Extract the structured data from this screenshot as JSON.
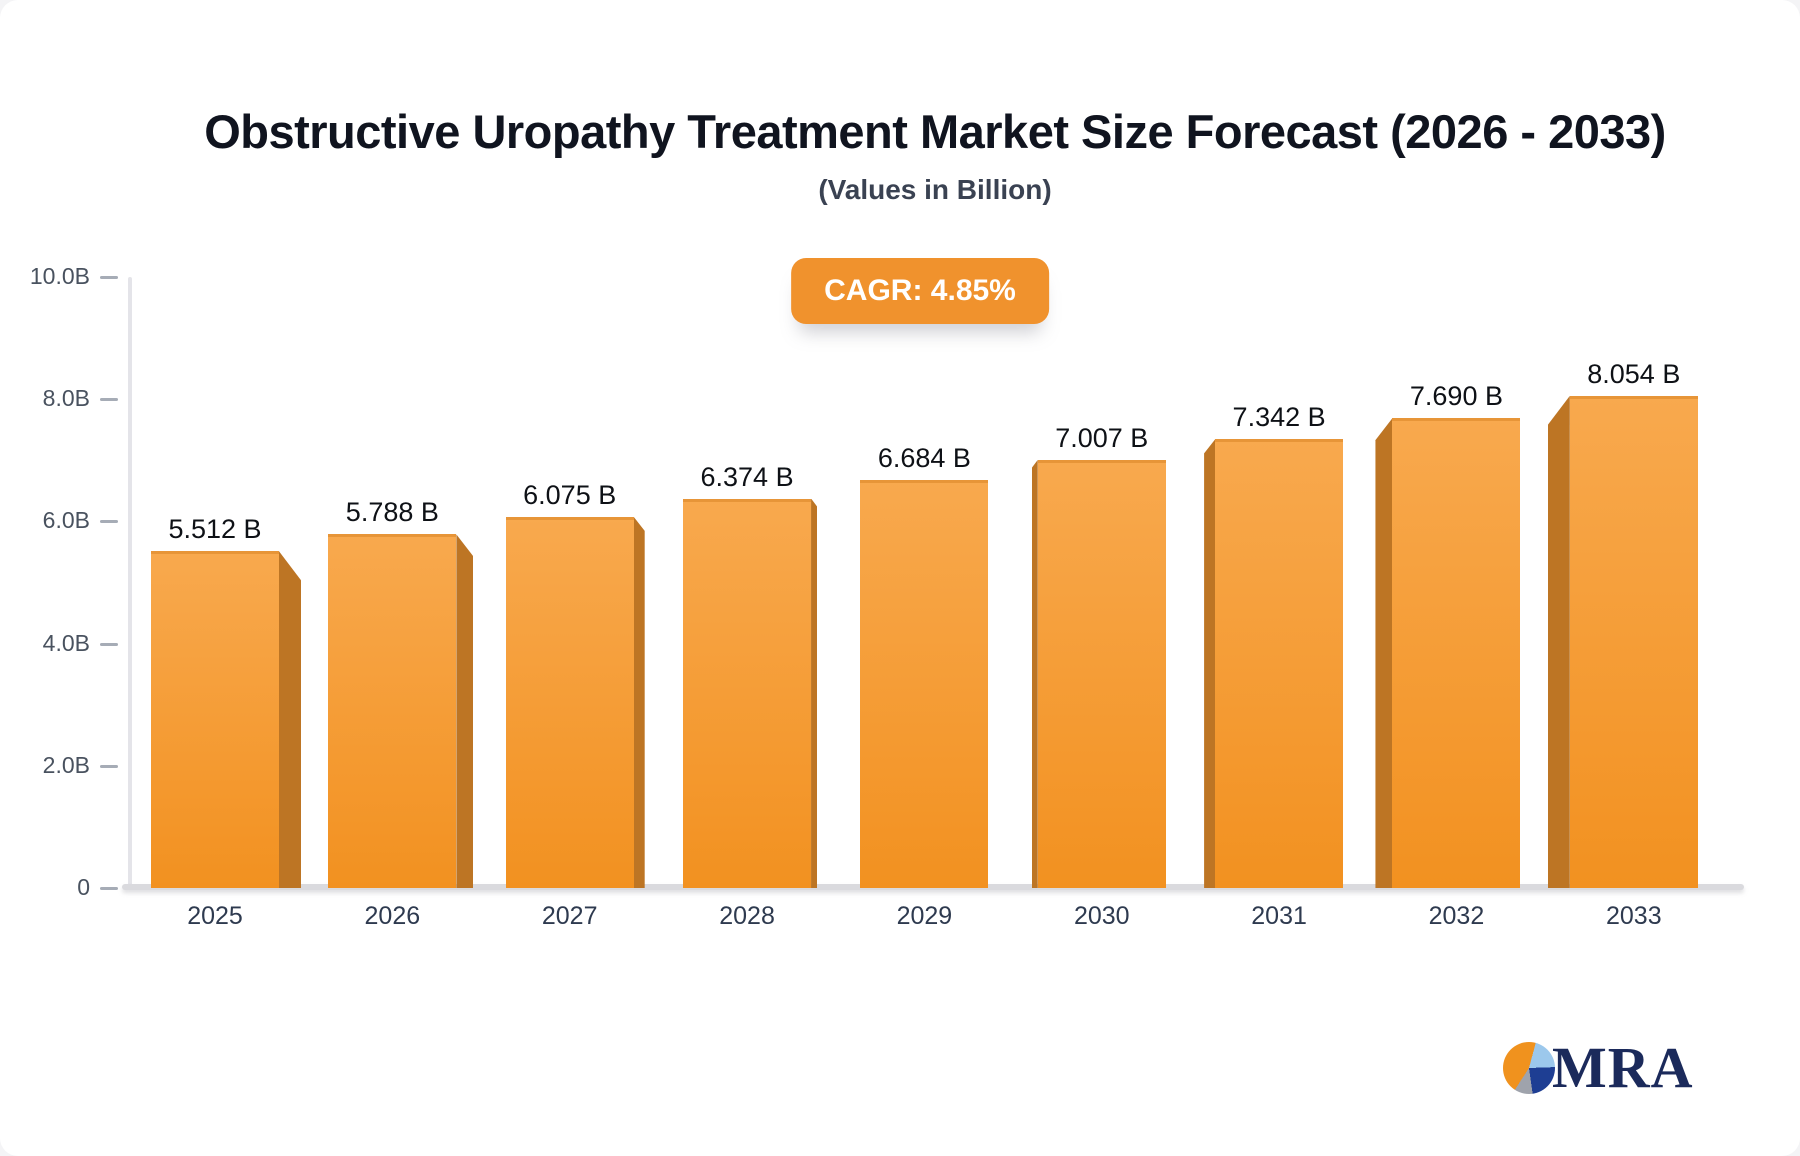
{
  "header": {
    "title": "Obstructive Uropathy Treatment Market Size Forecast (2026 - 2033)",
    "subtitle": "(Values in Billion)",
    "cagr_badge": "CAGR: 4.85%"
  },
  "chart_data": {
    "type": "bar",
    "title": "Obstructive Uropathy Treatment Market Size Forecast (2026 - 2033)",
    "subtitle": "(Values in Billion)",
    "cagr_percent": "4.85%",
    "categories": [
      "2025",
      "2026",
      "2027",
      "2028",
      "2029",
      "2030",
      "2031",
      "2032",
      "2033"
    ],
    "values": [
      5.512,
      5.788,
      6.075,
      6.374,
      6.684,
      7.007,
      7.342,
      7.69,
      8.054
    ],
    "value_labels": [
      "5.512 B",
      "5.788 B",
      "6.075 B",
      "6.374 B",
      "6.684 B",
      "7.007 B",
      "7.342 B",
      "7.690 B",
      "8.054 B"
    ],
    "xlabel": "",
    "ylabel": "",
    "ylim": [
      0,
      10
    ],
    "ytick_values": [
      0,
      2,
      4,
      6,
      8,
      10
    ],
    "ytick_labels": [
      "0",
      "2.0B",
      "4.0B",
      "6.0B",
      "8.0B",
      "10.0B"
    ],
    "grid": false,
    "legend": false,
    "bar_style": "3d-perspective-center",
    "colors": {
      "bar_gradient_top": "#f8a94e",
      "bar_gradient_bottom": "#f29120",
      "bar_side": "#bd7524",
      "badge": "#f0922d",
      "axis_line": "#dadade",
      "tick_text": "#49525f",
      "value_text": "#0e1116",
      "year_text": "#2e3a4f"
    }
  },
  "logo": {
    "icon": "pie-chart-icon",
    "text": "MRA",
    "colors": {
      "text_navy": "#1b2a5b",
      "pie_orange": "#f0921e",
      "pie_blue": "#9cc8ec",
      "pie_navy": "#1e3e93",
      "pie_gray": "#9fa3ac"
    }
  }
}
